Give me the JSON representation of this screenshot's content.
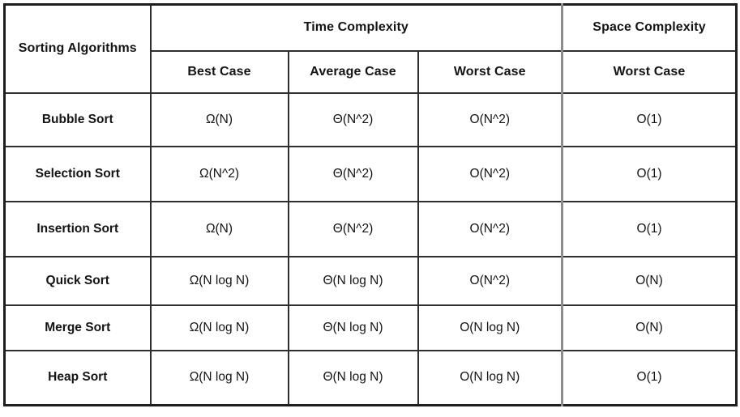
{
  "chart_data": {
    "type": "table",
    "header": {
      "row_label": "Sorting Algorithms",
      "time_group": "Time Complexity",
      "space_group": "Space Complexity",
      "best_case": "Best Case",
      "average_case": "Average Case",
      "worst_case_time": "Worst Case",
      "worst_case_space": "Worst Case"
    },
    "rows": [
      {
        "name": "Bubble Sort",
        "best": "Ω(N)",
        "average": "Θ(N^2)",
        "worst": "O(N^2)",
        "space": "O(1)"
      },
      {
        "name": "Selection Sort",
        "best": "Ω(N^2)",
        "average": "Θ(N^2)",
        "worst": "O(N^2)",
        "space": "O(1)"
      },
      {
        "name": "Insertion Sort",
        "best": "Ω(N)",
        "average": "Θ(N^2)",
        "worst": "O(N^2)",
        "space": "O(1)"
      },
      {
        "name": "Quick Sort",
        "best": "Ω(N log N)",
        "average": "Θ(N log N)",
        "worst": "O(N^2)",
        "space": "O(N)"
      },
      {
        "name": "Merge Sort",
        "best": "Ω(N log N)",
        "average": "Θ(N log N)",
        "worst": "O(N log N)",
        "space": "O(N)"
      },
      {
        "name": "Heap Sort",
        "best": "Ω(N log N)",
        "average": "Θ(N log N)",
        "worst": "O(N log N)",
        "space": "O(1)"
      }
    ],
    "layout": {
      "grid": "on",
      "header_rows": 2,
      "columns": [
        "Sorting Algorithms",
        "Best Case",
        "Average Case",
        "Worst Case",
        "Worst Case"
      ]
    }
  },
  "colors": {
    "header_bg": "#FCDF90",
    "cell_bg": "#FFFFFF",
    "border_dark": "#2E2E2E",
    "border_gray": "#8C8C8C",
    "text": "#141414"
  }
}
